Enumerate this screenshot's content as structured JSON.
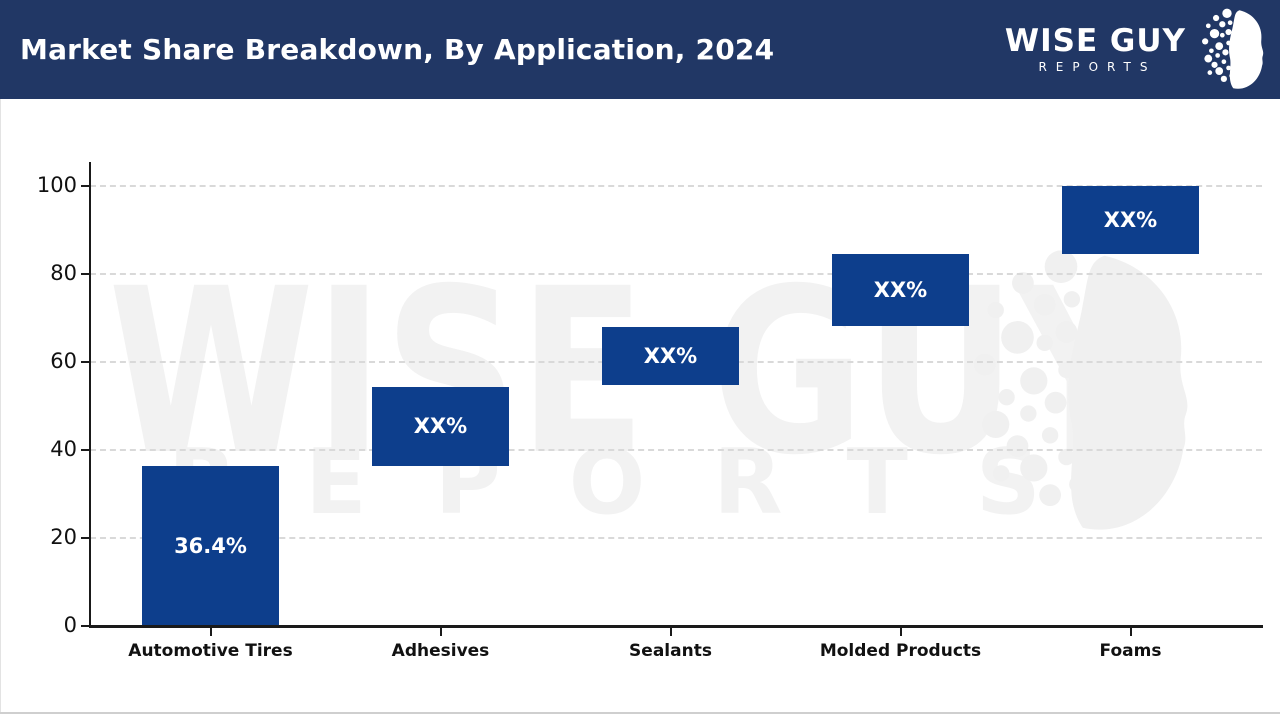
{
  "header": {
    "title": "Market Share Breakdown, By Application, 2024",
    "bg_color": "#213765",
    "logo": {
      "wordmark": "WISE GUY",
      "subtext": "REPORTS"
    }
  },
  "watermark": {
    "line1": "WISE GUY",
    "line2": "REPORTS"
  },
  "chart_data": {
    "type": "bar",
    "subtype": "floating-waterfall",
    "title": "Market Share Breakdown, By Application, 2024",
    "categories": [
      "Automotive Tires",
      "Adhesives",
      "Sealants",
      "Molded Products",
      "Foams"
    ],
    "bars": [
      {
        "category": "Automotive Tires",
        "start": 0,
        "end": 36.4,
        "label": "36.4%"
      },
      {
        "category": "Adhesives",
        "start": 36.4,
        "end": 54.3,
        "label": "XX%"
      },
      {
        "category": "Sealants",
        "start": 54.7,
        "end": 68.0,
        "label": "XX%"
      },
      {
        "category": "Molded Products",
        "start": 68.2,
        "end": 84.5,
        "label": "XX%"
      },
      {
        "category": "Foams",
        "start": 84.5,
        "end": 100,
        "label": "XX%"
      }
    ],
    "yticks": [
      0,
      20,
      40,
      60,
      80,
      100
    ],
    "ylim": [
      0,
      105
    ],
    "xlabel": "",
    "ylabel": "",
    "grid": "horizontal-dashed",
    "legend": "none",
    "colors": {
      "bar": "#0d3e8c",
      "bar_label": "#ffffff",
      "header_bg": "#213765",
      "header_text": "#ffffff",
      "grid": "#d9d9d9",
      "axis": "#1a1a1a",
      "watermark": "#f2f2f2"
    }
  }
}
